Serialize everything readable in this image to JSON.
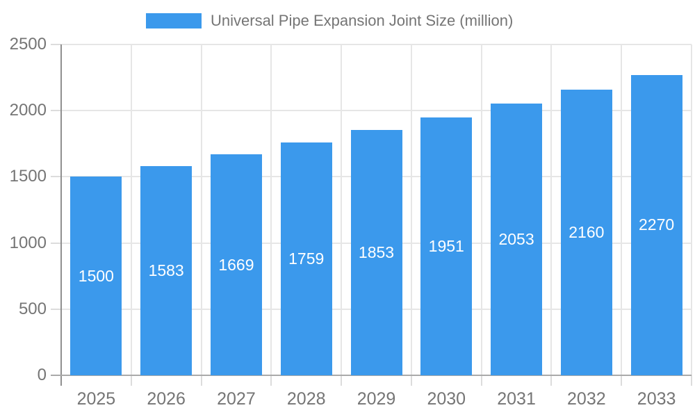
{
  "chart_data": {
    "type": "bar",
    "title": "Universal Pipe Expansion Joint Size (million)",
    "categories": [
      "2025",
      "2026",
      "2027",
      "2028",
      "2029",
      "2030",
      "2031",
      "2032",
      "2033"
    ],
    "values": [
      1500,
      1583,
      1669,
      1759,
      1853,
      1951,
      2053,
      2160,
      2270
    ],
    "xlabel": "",
    "ylabel": "",
    "ylim": [
      0,
      2500
    ],
    "yticks": [
      0,
      500,
      1000,
      1500,
      2000,
      2500
    ],
    "grid": true,
    "legend_position": "top",
    "value_labels": "centered-inside-bars",
    "colors": {
      "bar": "#3B99EC",
      "bar_value_text": "#ffffff",
      "tick_text": "#757575",
      "legend_text": "#757575",
      "gridline": "#e6e6e6",
      "y_axis_line": "#8f8f8f",
      "x_axis_line": "#a9a9a9",
      "background": "#ffffff"
    }
  }
}
